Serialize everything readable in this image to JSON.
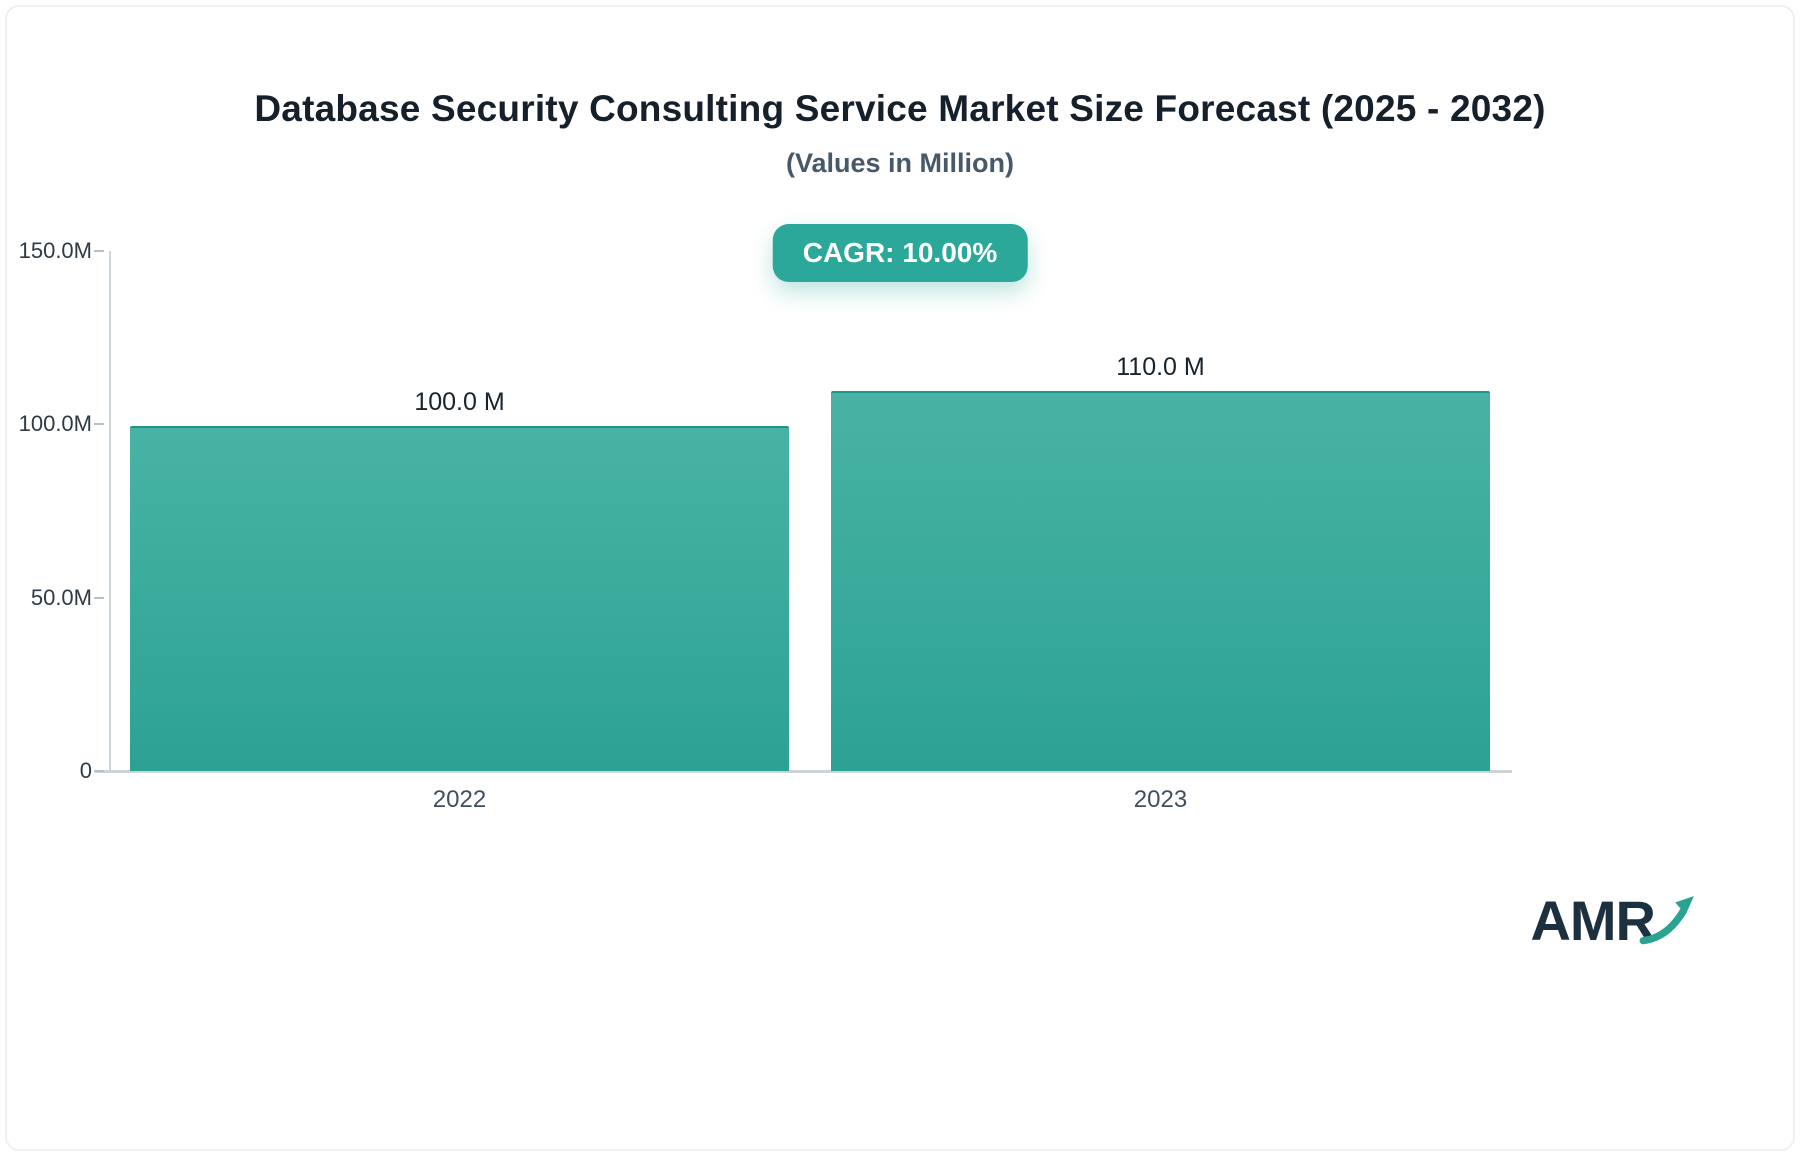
{
  "header": {
    "title": "Database Security Consulting Service Market Size Forecast (2025 - 2032)",
    "subtitle": "(Values in Million)"
  },
  "badge": {
    "label": "CAGR: 10.00%",
    "bg": "#2ba899"
  },
  "chart_data": {
    "type": "bar",
    "title": "Database Security Consulting Service Market Size Forecast (2025 - 2032)",
    "subtitle": "(Values in Million)",
    "cagr": "10.00%",
    "categories": [
      "2022",
      "2023"
    ],
    "values": [
      100.0,
      110.0
    ],
    "value_labels": [
      "100.0 M",
      "110.0 M"
    ],
    "xlabel": "",
    "ylabel": "",
    "ylim": [
      0,
      150
    ],
    "ytick_labels": [
      "150.0M",
      "100.0M",
      "50.0M",
      "0"
    ],
    "ytick_values": [
      150,
      100,
      50,
      0
    ],
    "grid": false,
    "legend": "none",
    "bar_color_top": "#48b3a4",
    "bar_color_bottom": "#2ca294",
    "bar_color_edge": "#1f9688",
    "axis_color": "#ccd3d9"
  },
  "logo": {
    "text": "AMR",
    "arrow_color": "#2aa392"
  }
}
